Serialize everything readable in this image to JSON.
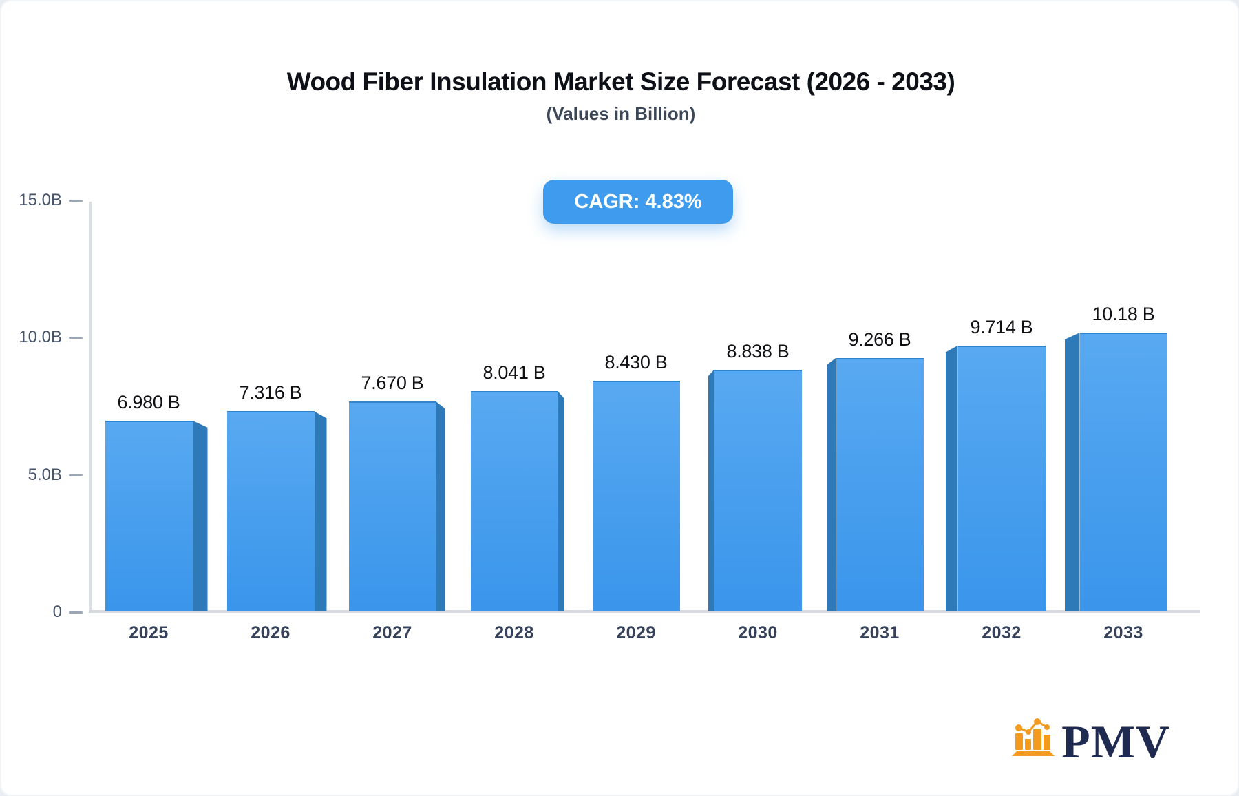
{
  "title": "Wood Fiber Insulation Market Size Forecast (2026 - 2033)",
  "subtitle": "(Values in Billion)",
  "cagr_badge": {
    "label": "CAGR: 4.83%",
    "bg": "#3e9bed"
  },
  "logo": {
    "text": "PMV",
    "icon": "bar-chart-logo-icon",
    "icon_color": "#f49b1f",
    "text_color": "#1f2a50"
  },
  "colors": {
    "bar_front_top": "#58a9f1",
    "bar_front_bottom": "#3a95eb",
    "bar_side": "#2e79b8",
    "axis_line": "#d9dde2",
    "tick_text": "#47556b",
    "badge_blue": "#3e9bed"
  },
  "chart_data": {
    "type": "bar",
    "title": "Wood Fiber Insulation Market Size Forecast (2026 - 2033)",
    "subtitle": "(Values in Billion)",
    "annotation": "CAGR: 4.83%",
    "categories": [
      "2025",
      "2026",
      "2027",
      "2028",
      "2029",
      "2030",
      "2031",
      "2032",
      "2033"
    ],
    "values": [
      6.98,
      7.316,
      7.67,
      8.041,
      8.43,
      8.838,
      9.266,
      9.714,
      10.18
    ],
    "value_labels": [
      "6.980 B",
      "7.316 B",
      "7.670 B",
      "8.041 B",
      "8.430 B",
      "8.838 B",
      "9.266 B",
      "9.714 B",
      "10.18 B"
    ],
    "xlabel": "",
    "ylabel": "",
    "ylim": [
      0,
      15
    ],
    "y_ticks": [
      {
        "value": 15,
        "label": "15.0B"
      },
      {
        "value": 10,
        "label": "10.0B"
      },
      {
        "value": 5,
        "label": "5.0B"
      },
      {
        "value": 0,
        "label": "0"
      }
    ],
    "grid": false,
    "legend": false,
    "style": "3d-perspective-bars"
  }
}
